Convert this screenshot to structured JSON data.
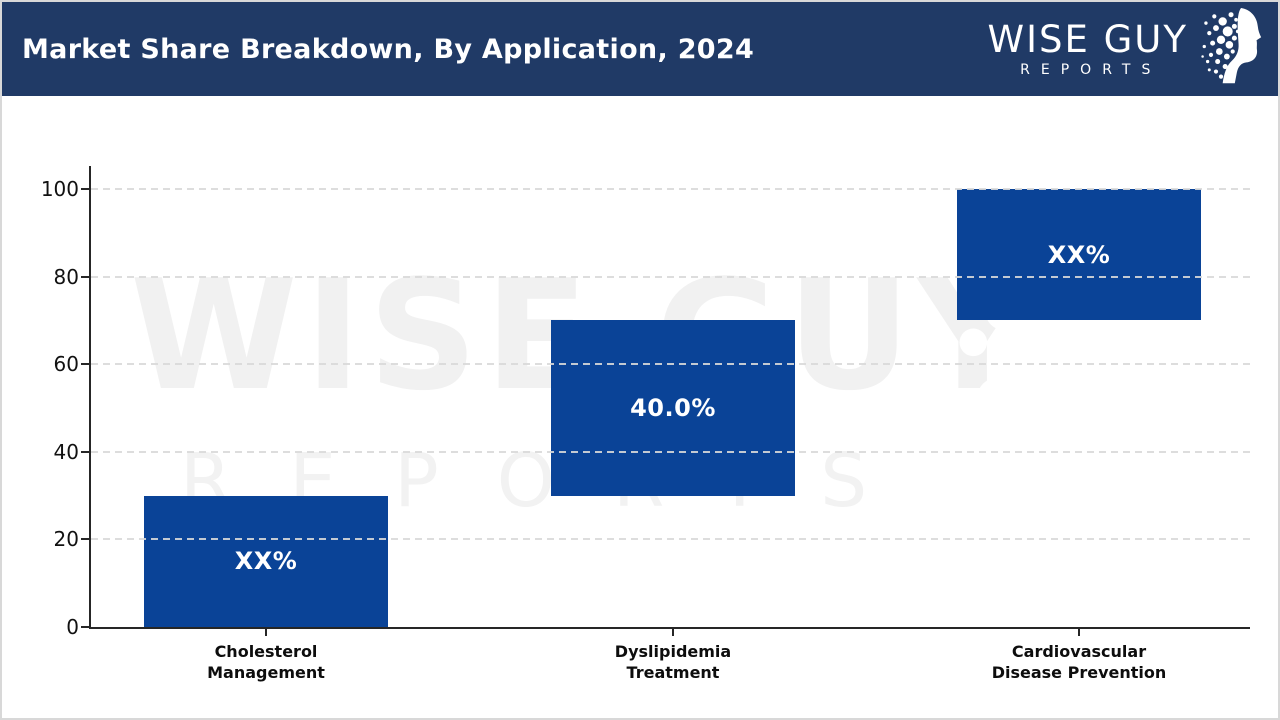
{
  "header": {
    "title": "Market Share Breakdown, By Application, 2024",
    "logo_line1": "WISE GUY",
    "logo_line2": "REPORTS",
    "bg_color": "#203a66"
  },
  "watermark": {
    "line1": "WISE GUY",
    "line2": "REPORTS"
  },
  "chart_data": {
    "type": "bar",
    "variant": "floating-waterfall-segments",
    "title": "Market Share Breakdown, By Application, 2024",
    "categories": [
      [
        "Cholesterol",
        "Management"
      ],
      [
        "Dyslipidemia",
        "Treatment"
      ],
      [
        "Cardiovascular",
        "Disease Prevention"
      ]
    ],
    "series": [
      {
        "name": "Market Share",
        "segments": [
          {
            "category": "Cholesterol Management",
            "from": 0,
            "to": 30,
            "label": "XX%"
          },
          {
            "category": "Dyslipidemia Treatment",
            "from": 30,
            "to": 70,
            "label": "40.0%"
          },
          {
            "category": "Cardiovascular Disease Prevention",
            "from": 70,
            "to": 100,
            "label": "XX%"
          }
        ]
      }
    ],
    "y_ticks": [
      0,
      20,
      40,
      60,
      80,
      100
    ],
    "ylim": [
      0,
      100
    ],
    "xlabel": "",
    "ylabel": "",
    "grid": "horizontal-dashed",
    "legend": "none",
    "bar_color": "#0a4397",
    "bar_label_color": "#ffffff",
    "gridline_color": "#d9d9d9",
    "axis_color": "#262626"
  }
}
